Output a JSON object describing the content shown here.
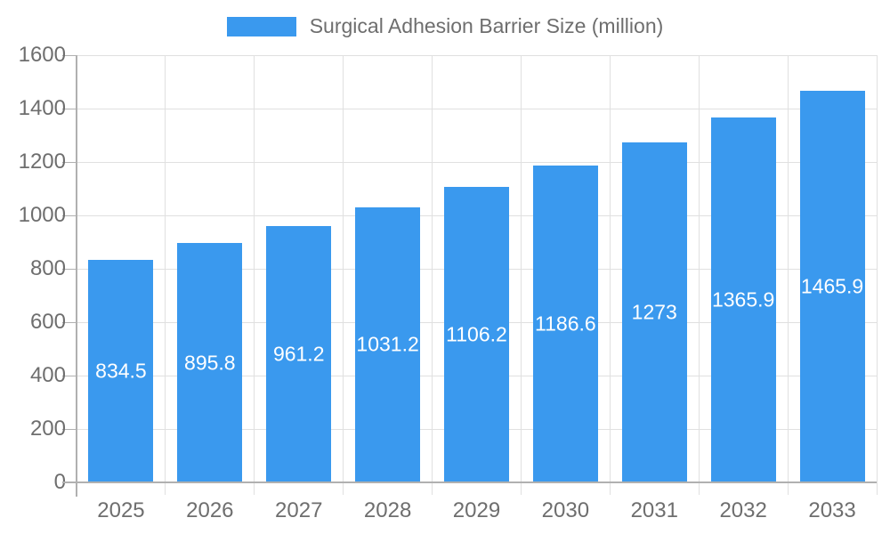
{
  "legend": {
    "label": "Surgical Adhesion Barrier Size (million)"
  },
  "chart_data": {
    "type": "bar",
    "title": "Surgical Adhesion Barrier Size (million)",
    "categories": [
      "2025",
      "2026",
      "2027",
      "2028",
      "2029",
      "2030",
      "2031",
      "2032",
      "2033"
    ],
    "values": [
      834.5,
      895.8,
      961.2,
      1031.2,
      1106.2,
      1186.6,
      1273,
      1365.9,
      1465.9
    ],
    "data_labels": [
      "834.5",
      "895.8",
      "961.2",
      "1031.2",
      "1106.2",
      "1186.6",
      "1273",
      "1365.9",
      "1465.9"
    ],
    "xlabel": "",
    "ylabel": "",
    "ylim": [
      0,
      1600
    ],
    "yticks": [
      0,
      200,
      400,
      600,
      800,
      1000,
      1200,
      1400,
      1600
    ],
    "grid": true,
    "legend_position": "top",
    "colors": {
      "bar": "#3a99ee",
      "bar_label_text": "#ffffff",
      "axis_text": "#6e6e6e",
      "grid_line": "#e0e0e0",
      "axis_line": "#b0b0b0"
    }
  }
}
